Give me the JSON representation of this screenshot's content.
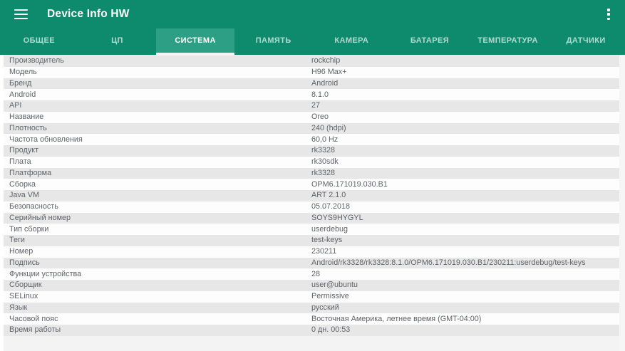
{
  "app": {
    "title": "Device Info HW"
  },
  "colors": {
    "appbar_green": "#0e8b6d",
    "selected_tab_green": "#2d9f85",
    "tab_indicator": "#f2f2f2",
    "row_odd": "#e7e7e7",
    "row_even": "#fdfdfd",
    "text_gray": "#5f6368"
  },
  "tabs": [
    {
      "label": "ОБЩЕЕ",
      "selected": false
    },
    {
      "label": "ЦП",
      "selected": false
    },
    {
      "label": "СИСТЕМА",
      "selected": true
    },
    {
      "label": "ПАМЯТЬ",
      "selected": false
    },
    {
      "label": "КАМЕРА",
      "selected": false
    },
    {
      "label": "БАТАРЕЯ",
      "selected": false
    },
    {
      "label": "ТЕМПЕРАТУРА",
      "selected": false
    },
    {
      "label": "ДАТЧИКИ",
      "selected": false
    }
  ],
  "table": {
    "rows": [
      {
        "label": "Производитель",
        "value": "rockchip"
      },
      {
        "label": "Модель",
        "value": "H96 Max+"
      },
      {
        "label": "Бренд",
        "value": "Android"
      },
      {
        "label": "Android",
        "value": "8.1.0"
      },
      {
        "label": "API",
        "value": "27"
      },
      {
        "label": "Название",
        "value": "Oreo"
      },
      {
        "label": "Плотность",
        "value": "240 (hdpi)"
      },
      {
        "label": "Частота обновления",
        "value": "60,0 Hz"
      },
      {
        "label": "Продукт",
        "value": "rk3328"
      },
      {
        "label": "Плата",
        "value": "rk30sdk"
      },
      {
        "label": "Платформа",
        "value": "rk3328"
      },
      {
        "label": "Сборка",
        "value": "OPM6.171019.030.B1"
      },
      {
        "label": "Java VM",
        "value": "ART 2.1.0"
      },
      {
        "label": "Безопасность",
        "value": "05.07.2018"
      },
      {
        "label": "Серийный номер",
        "value": "SOYS9HYGYL"
      },
      {
        "label": "Тип сборки",
        "value": "userdebug"
      },
      {
        "label": "Теги",
        "value": "test-keys"
      },
      {
        "label": "Номер",
        "value": "230211"
      },
      {
        "label": "Подпись",
        "value": "Android/rk3328/rk3328:8.1.0/OPM6.171019.030.B1/230211:userdebug/test-keys"
      },
      {
        "label": "Функции устройства",
        "value": "28"
      },
      {
        "label": "Сборщик",
        "value": "user@ubuntu"
      },
      {
        "label": "SELinux",
        "value": "Permissive"
      },
      {
        "label": "Язык",
        "value": "русский"
      },
      {
        "label": "Часовой пояс",
        "value": "Восточная Америка, летнее время (GMT-04:00)"
      },
      {
        "label": "Время работы",
        "value": "0 дн. 00:53"
      }
    ]
  }
}
